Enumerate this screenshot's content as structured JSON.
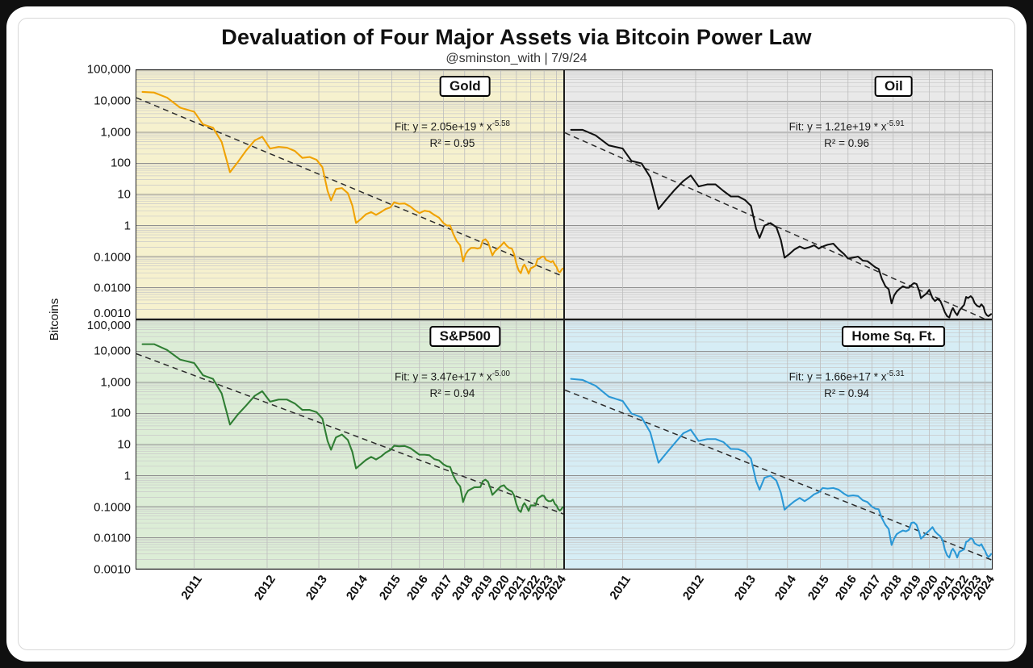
{
  "chart_data": {
    "type": "line",
    "title": "Devaluation of Four Major Assets via Bitcoin Power Law",
    "subtitle": "@sminston_with | 7/9/24",
    "grid": true,
    "legend": "none",
    "x_axis": {
      "scale": "log",
      "unit": "year",
      "range_years": [
        2010.45,
        2024.58
      ],
      "tick_years": [
        2011,
        2012,
        2013,
        2014,
        2015,
        2016,
        2017,
        2018,
        2019,
        2020,
        2021,
        2022,
        2023,
        2024
      ]
    },
    "y_axis": {
      "scale": "log",
      "label": "Bitcoins",
      "range": [
        0.001,
        100000
      ],
      "tick_labels": [
        "100,000",
        "10,000",
        "1,000",
        "100",
        "10",
        "1",
        "0.1000",
        "0.0100",
        "0.0010"
      ]
    },
    "x_years": [
      2010.5,
      2010.6,
      2010.72,
      2010.85,
      2011.0,
      2011.1,
      2011.22,
      2011.33,
      2011.44,
      2011.55,
      2011.67,
      2011.8,
      2011.92,
      2012.05,
      2012.2,
      2012.35,
      2012.5,
      2012.65,
      2012.8,
      2012.95,
      2013.08,
      2013.2,
      2013.28,
      2013.4,
      2013.55,
      2013.7,
      2013.82,
      2013.92,
      2014.05,
      2014.2,
      2014.35,
      2014.5,
      2014.65,
      2014.8,
      2014.95,
      2015.08,
      2015.25,
      2015.45,
      2015.65,
      2015.85,
      2016.0,
      2016.2,
      2016.4,
      2016.6,
      2016.8,
      2017.0,
      2017.15,
      2017.3,
      2017.45,
      2017.62,
      2017.78,
      2017.92,
      2018.05,
      2018.18,
      2018.33,
      2018.5,
      2018.67,
      2018.82,
      2018.96,
      2019.1,
      2019.25,
      2019.4,
      2019.5,
      2019.65,
      2019.82,
      2020.0,
      2020.2,
      2020.35,
      2020.52,
      2020.7,
      2020.85,
      2021.0,
      2021.15,
      2021.3,
      2021.45,
      2021.55,
      2021.7,
      2021.85,
      2022.0,
      2022.15,
      2022.35,
      2022.5,
      2022.65,
      2022.85,
      2023.0,
      2023.15,
      2023.35,
      2023.55,
      2023.7,
      2023.88,
      2024.0,
      2024.15,
      2024.28,
      2024.4,
      2024.52
    ],
    "panels": [
      {
        "id": "gold",
        "title": "Gold",
        "color": "#F0A202",
        "bg": "#F6F1CE",
        "fit_prefix": "Fit: y = 2.05e+19 * x",
        "fit_exponent": "-5.58",
        "r2_label": "R² = 0.95",
        "fit": {
          "coef": 2.05e+19,
          "exponent": -5.58
        },
        "values": [
          20000,
          19000,
          13000,
          6200,
          4600,
          1800,
          1400,
          490,
          52,
          110,
          260,
          550,
          720,
          300,
          340,
          320,
          250,
          150,
          160,
          130,
          75,
          13,
          6.4,
          15,
          16,
          11,
          4.4,
          1.2,
          1.6,
          2.3,
          2.7,
          2.2,
          2.7,
          3.4,
          3.8,
          5.6,
          5.0,
          5.1,
          4.1,
          3.0,
          2.5,
          3.0,
          2.8,
          2.2,
          1.8,
          1.2,
          1.0,
          1.0,
          0.53,
          0.31,
          0.23,
          0.069,
          0.12,
          0.16,
          0.19,
          0.19,
          0.18,
          0.19,
          0.33,
          0.36,
          0.29,
          0.16,
          0.11,
          0.15,
          0.18,
          0.22,
          0.29,
          0.23,
          0.19,
          0.18,
          0.12,
          0.059,
          0.036,
          0.029,
          0.048,
          0.055,
          0.041,
          0.028,
          0.042,
          0.045,
          0.051,
          0.083,
          0.086,
          0.1,
          0.1,
          0.078,
          0.072,
          0.066,
          0.072,
          0.054,
          0.047,
          0.034,
          0.031,
          0.036,
          0.041
        ]
      },
      {
        "id": "oil",
        "title": "Oil",
        "color": "#111111",
        "bg": "#E9E9E9",
        "fit_prefix": "Fit: y = 1.21e+19 * x",
        "fit_exponent": "-5.91",
        "r2_label": "R² = 0.96",
        "fit": {
          "coef": 1.21e+19,
          "exponent": -5.91
        },
        "values": [
          1200,
          1200,
          800,
          380,
          300,
          120,
          100,
          36,
          3.4,
          6.9,
          14,
          27,
          41,
          18,
          21,
          21,
          13,
          8.6,
          8.6,
          6.6,
          4.3,
          0.78,
          0.4,
          0.99,
          1.2,
          0.88,
          0.34,
          0.092,
          0.12,
          0.17,
          0.21,
          0.18,
          0.2,
          0.23,
          0.18,
          0.21,
          0.24,
          0.26,
          0.17,
          0.12,
          0.086,
          0.092,
          0.1,
          0.074,
          0.071,
          0.055,
          0.045,
          0.04,
          0.019,
          0.011,
          0.0089,
          0.0031,
          0.0056,
          0.0075,
          0.0092,
          0.011,
          0.01,
          0.01,
          0.012,
          0.014,
          0.013,
          0.0079,
          0.0046,
          0.0054,
          0.0064,
          0.0085,
          0.0046,
          0.0037,
          0.0043,
          0.0037,
          0.0025,
          0.0016,
          0.0012,
          0.0011,
          0.0018,
          0.0022,
          0.0016,
          0.0013,
          0.0018,
          0.0022,
          0.0028,
          0.005,
          0.0046,
          0.0053,
          0.0046,
          0.0032,
          0.0026,
          0.0024,
          0.0029,
          0.0024,
          0.0016,
          0.0013,
          0.0012,
          0.0013,
          0.0014
        ]
      },
      {
        "id": "sp500",
        "title": "S&P500",
        "color": "#2F7E33",
        "bg": "#DCEDD6",
        "fit_prefix": "Fit: y = 3.47e+17 * x",
        "fit_exponent": "-5.00",
        "r2_label": "R² = 0.94",
        "fit": {
          "coef": 3.47e+17,
          "exponent": -5.0
        },
        "values": [
          17000,
          17000,
          11000,
          5400,
          4200,
          1700,
          1300,
          440,
          44,
          93,
          180,
          370,
          520,
          240,
          280,
          280,
          210,
          130,
          130,
          110,
          68,
          13,
          6.8,
          17,
          21,
          14,
          5.8,
          1.7,
          2.3,
          3.2,
          4.0,
          3.3,
          4.1,
          5.5,
          6.6,
          9.1,
          8.8,
          9.0,
          7.7,
          5.8,
          4.7,
          4.7,
          4.5,
          3.4,
          3.1,
          2.3,
          2.0,
          1.9,
          1.0,
          0.6,
          0.45,
          0.14,
          0.24,
          0.33,
          0.37,
          0.42,
          0.42,
          0.43,
          0.66,
          0.74,
          0.63,
          0.37,
          0.24,
          0.29,
          0.36,
          0.45,
          0.49,
          0.39,
          0.34,
          0.31,
          0.23,
          0.12,
          0.078,
          0.067,
          0.11,
          0.13,
          0.1,
          0.073,
          0.11,
          0.11,
          0.11,
          0.18,
          0.2,
          0.23,
          0.22,
          0.17,
          0.15,
          0.15,
          0.17,
          0.12,
          0.11,
          0.083,
          0.075,
          0.081,
          0.096
        ]
      },
      {
        "id": "home",
        "title": "Home Sq. Ft.",
        "color": "#2B98D6",
        "bg": "#D6EDF5",
        "fit_prefix": "Fit: y = 1.66e+17 * x",
        "fit_exponent": "-5.31",
        "r2_label": "R² = 0.94",
        "fit": {
          "coef": 1.66e+17,
          "exponent": -5.31
        },
        "values": [
          1300,
          1200,
          780,
          350,
          250,
          100,
          75,
          25,
          2.6,
          5.3,
          11,
          23,
          30,
          13,
          15,
          15,
          12,
          7.2,
          7.1,
          5.8,
          3.5,
          0.66,
          0.35,
          0.85,
          1.0,
          0.69,
          0.28,
          0.08,
          0.11,
          0.15,
          0.19,
          0.15,
          0.19,
          0.25,
          0.29,
          0.4,
          0.38,
          0.4,
          0.35,
          0.26,
          0.22,
          0.23,
          0.22,
          0.16,
          0.14,
          0.1,
          0.086,
          0.082,
          0.043,
          0.026,
          0.019,
          0.0058,
          0.0094,
          0.013,
          0.015,
          0.017,
          0.016,
          0.018,
          0.03,
          0.031,
          0.026,
          0.015,
          0.0093,
          0.011,
          0.014,
          0.017,
          0.022,
          0.016,
          0.013,
          0.011,
          0.0083,
          0.0041,
          0.0027,
          0.0023,
          0.0038,
          0.0044,
          0.0034,
          0.0023,
          0.0035,
          0.0038,
          0.0042,
          0.0073,
          0.0078,
          0.0096,
          0.009,
          0.0066,
          0.0059,
          0.0055,
          0.0062,
          0.0045,
          0.0038,
          0.0028,
          0.0024,
          0.0026,
          0.003
        ]
      }
    ]
  }
}
